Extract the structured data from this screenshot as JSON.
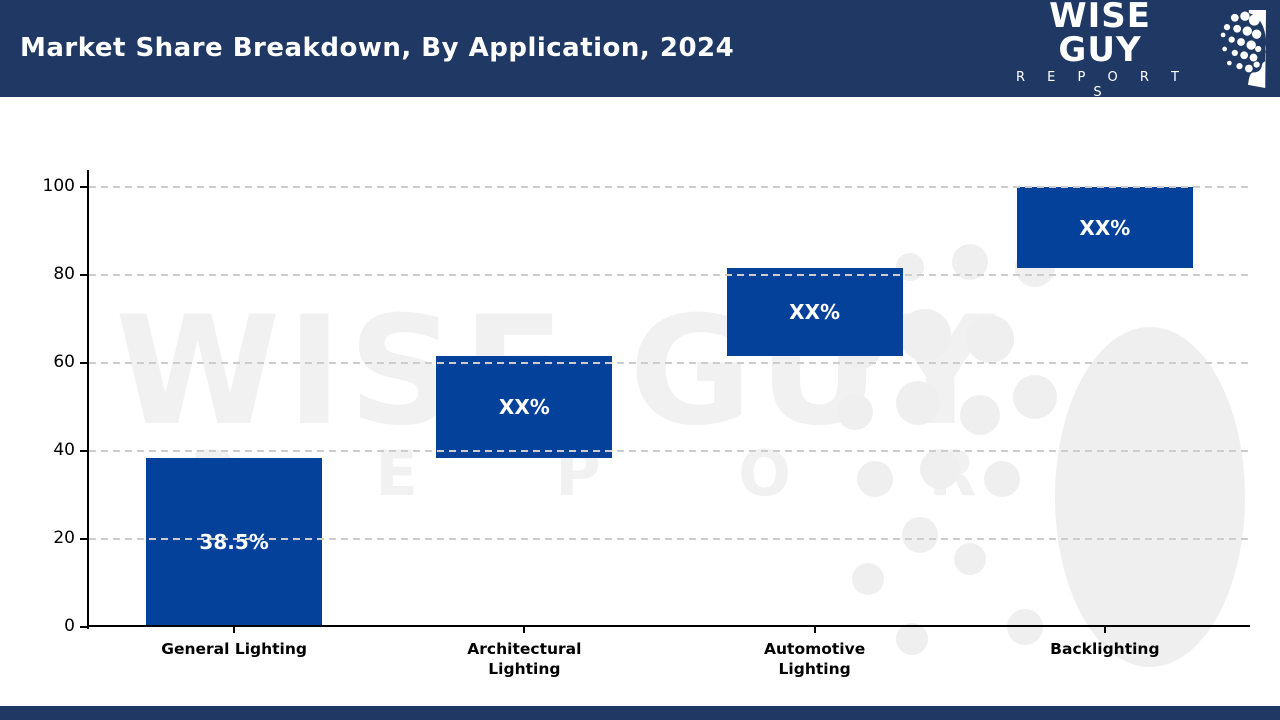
{
  "header": {
    "title": "Market Share Breakdown, By Application, 2024",
    "logo": {
      "wordmark": "WISE GUY",
      "subtext": "R E P O R T S"
    }
  },
  "watermark": {
    "primary": "WISE GUY",
    "secondary": "R E P O R T S"
  },
  "chart_data": {
    "type": "bar",
    "subtype": "waterfall",
    "title": "Market Share Breakdown, By Application, 2024",
    "categories": [
      "General Lighting",
      "Architectural\nLighting",
      "Automotive\nLighting",
      "Backlighting"
    ],
    "segments": [
      {
        "category": "General Lighting",
        "start": 0,
        "end": 38.5,
        "label": "38.5%"
      },
      {
        "category": "Architectural Lighting",
        "start": 38.5,
        "end": 61.5,
        "label": "XX%"
      },
      {
        "category": "Automotive Lighting",
        "start": 61.5,
        "end": 81.5,
        "label": "XX%"
      },
      {
        "category": "Backlighting",
        "start": 81.5,
        "end": 100,
        "label": "XX%"
      }
    ],
    "yticks": [
      0,
      20,
      40,
      60,
      80,
      100
    ],
    "ylim": [
      0,
      104
    ],
    "xlabel": "",
    "ylabel": "",
    "grid": "horizontal-dashed-over-bars",
    "legend": "none",
    "bar_color": "#04419b",
    "bar_label_color": "#ffffff"
  },
  "colors": {
    "header_bg": "#1f3864",
    "footer_bg": "#1f3864",
    "bar": "#04419b",
    "grid": "#cdcdcd",
    "axis": "#000000",
    "watermark": "#f1f1f1"
  }
}
